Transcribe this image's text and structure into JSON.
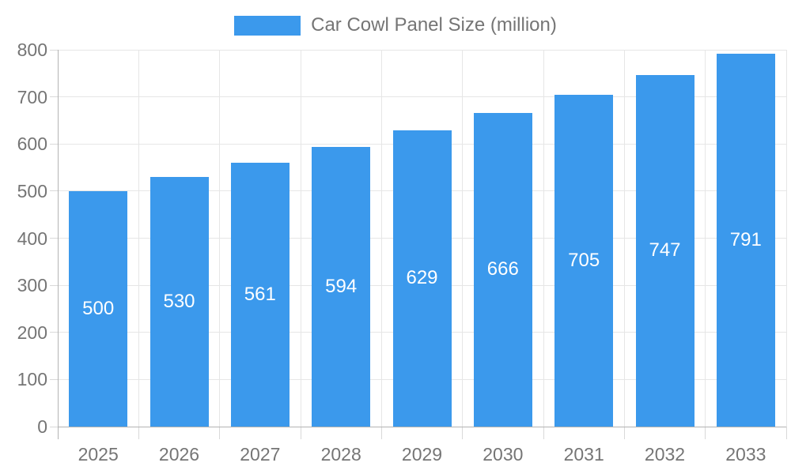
{
  "chart_data": {
    "type": "bar",
    "title": "Car Cowl Panel Size (million)",
    "categories": [
      "2025",
      "2026",
      "2027",
      "2028",
      "2029",
      "2030",
      "2031",
      "2032",
      "2033"
    ],
    "values": [
      500,
      530,
      561,
      594,
      629,
      666,
      705,
      747,
      791
    ],
    "xlabel": "",
    "ylabel": "",
    "ylim": [
      0,
      800
    ],
    "ytick_step": 100,
    "grid": "on",
    "legend_position": "top-center",
    "bar_color": "#3b99ec",
    "bar_label_color": "#ffffff",
    "axis_text_color": "#757575",
    "grid_color": "#e6e6e6",
    "axis_line_color": "#b3b3b3"
  }
}
